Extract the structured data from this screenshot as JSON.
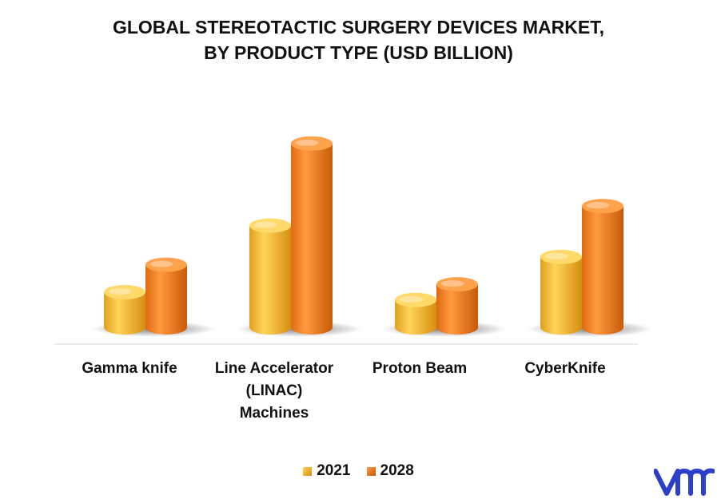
{
  "chart_data": {
    "type": "bar",
    "title_lines": [
      "GLOBAL STEREOTACTIC SURGERY DEVICES MARKET,",
      "BY PRODUCT TYPE (USD BILLION)"
    ],
    "categories": [
      "Gamma knife",
      "Line Accelerator (LINAC) Machines",
      "Proton Beam",
      "CyberKnife"
    ],
    "category_lines": [
      [
        "Gamma knife"
      ],
      [
        "Line Accelerator",
        "(LINAC)",
        "Machines"
      ],
      [
        "Proton Beam"
      ],
      [
        "CyberKnife"
      ]
    ],
    "series": [
      {
        "name": "2021",
        "values": [
          0.9,
          2.6,
          0.7,
          1.8
        ],
        "color": "#F5B533"
      },
      {
        "name": "2028",
        "values": [
          1.6,
          4.7,
          1.1,
          3.1
        ],
        "color": "#F07A1E"
      }
    ],
    "ylim": [
      0,
      5
    ],
    "xlabel": "",
    "ylabel": ""
  },
  "logo": {
    "text": "vmr",
    "color": "#2B3FC8"
  }
}
